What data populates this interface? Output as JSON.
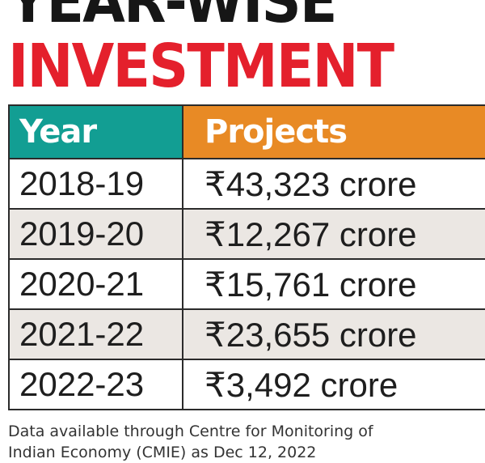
{
  "title": {
    "line1": "YEAR-WISE",
    "line2": "INVESTMENT"
  },
  "colors": {
    "title_accent": "#e4202c",
    "year_header_bg": "#129e93",
    "projects_header_bg": "#e88a25",
    "shaded_row_bg": "#ebe7e3"
  },
  "chart_data": {
    "type": "table",
    "columns": [
      "Year",
      "Projects"
    ],
    "rows": [
      {
        "year": "2018-19",
        "projects": "₹43,323 crore"
      },
      {
        "year": "2019-20",
        "projects": "₹12,267 crore"
      },
      {
        "year": "2020-21",
        "projects": "₹15,761 crore"
      },
      {
        "year": "2021-22",
        "projects": "₹23,655 crore"
      },
      {
        "year": "2022-23",
        "projects": "₹3,492 crore"
      }
    ]
  },
  "footnote": {
    "line1": "Data available through Centre for Monitoring of",
    "line2": "Indian Economy (CMIE) as Dec 12, 2022"
  }
}
